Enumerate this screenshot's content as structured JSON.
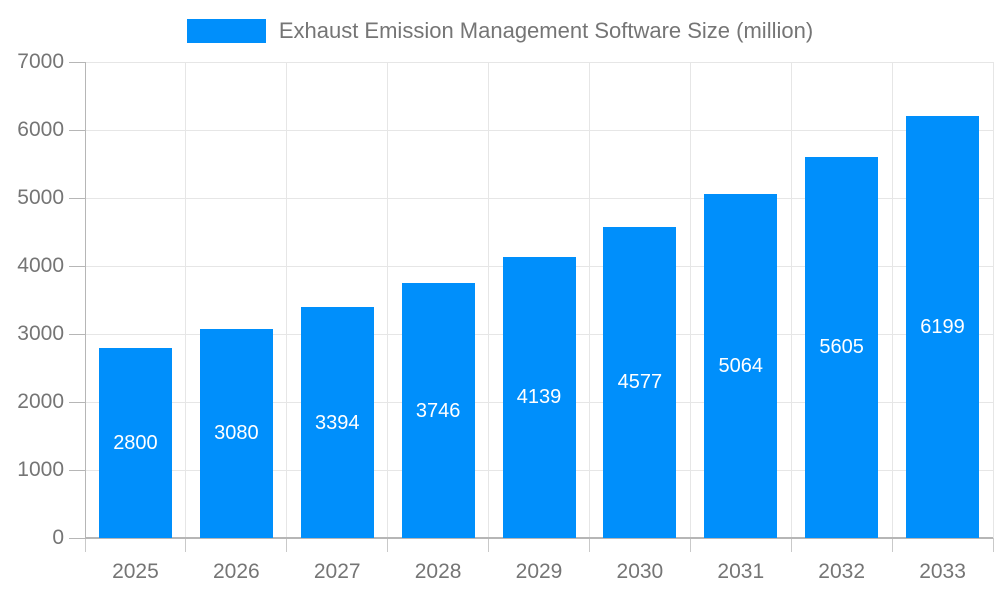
{
  "chart_data": {
    "type": "bar",
    "title": "Exhaust Emission Management Software Size (million)",
    "categories": [
      "2025",
      "2026",
      "2027",
      "2028",
      "2029",
      "2030",
      "2031",
      "2032",
      "2033"
    ],
    "values": [
      2800,
      3080,
      3394,
      3746,
      4139,
      4577,
      5064,
      5605,
      6199
    ],
    "value_labels": [
      "2800",
      "3080",
      "3394",
      "3746",
      "4139",
      "4577",
      "5064",
      "5605",
      "6199"
    ],
    "xlabel": "",
    "ylabel": "",
    "ylim": [
      0,
      7000
    ],
    "ytick_step": 1000,
    "yticks": [
      0,
      1000,
      2000,
      3000,
      4000,
      5000,
      6000,
      7000
    ],
    "legend_position": "top",
    "grid": true,
    "colors": {
      "bar": "#008FFB",
      "axis_label": "#757575",
      "legend_text": "#757575",
      "gridline": "#e6e6e6",
      "axis_line": "#b6b6b6",
      "bar_label": "#ffffff"
    }
  }
}
